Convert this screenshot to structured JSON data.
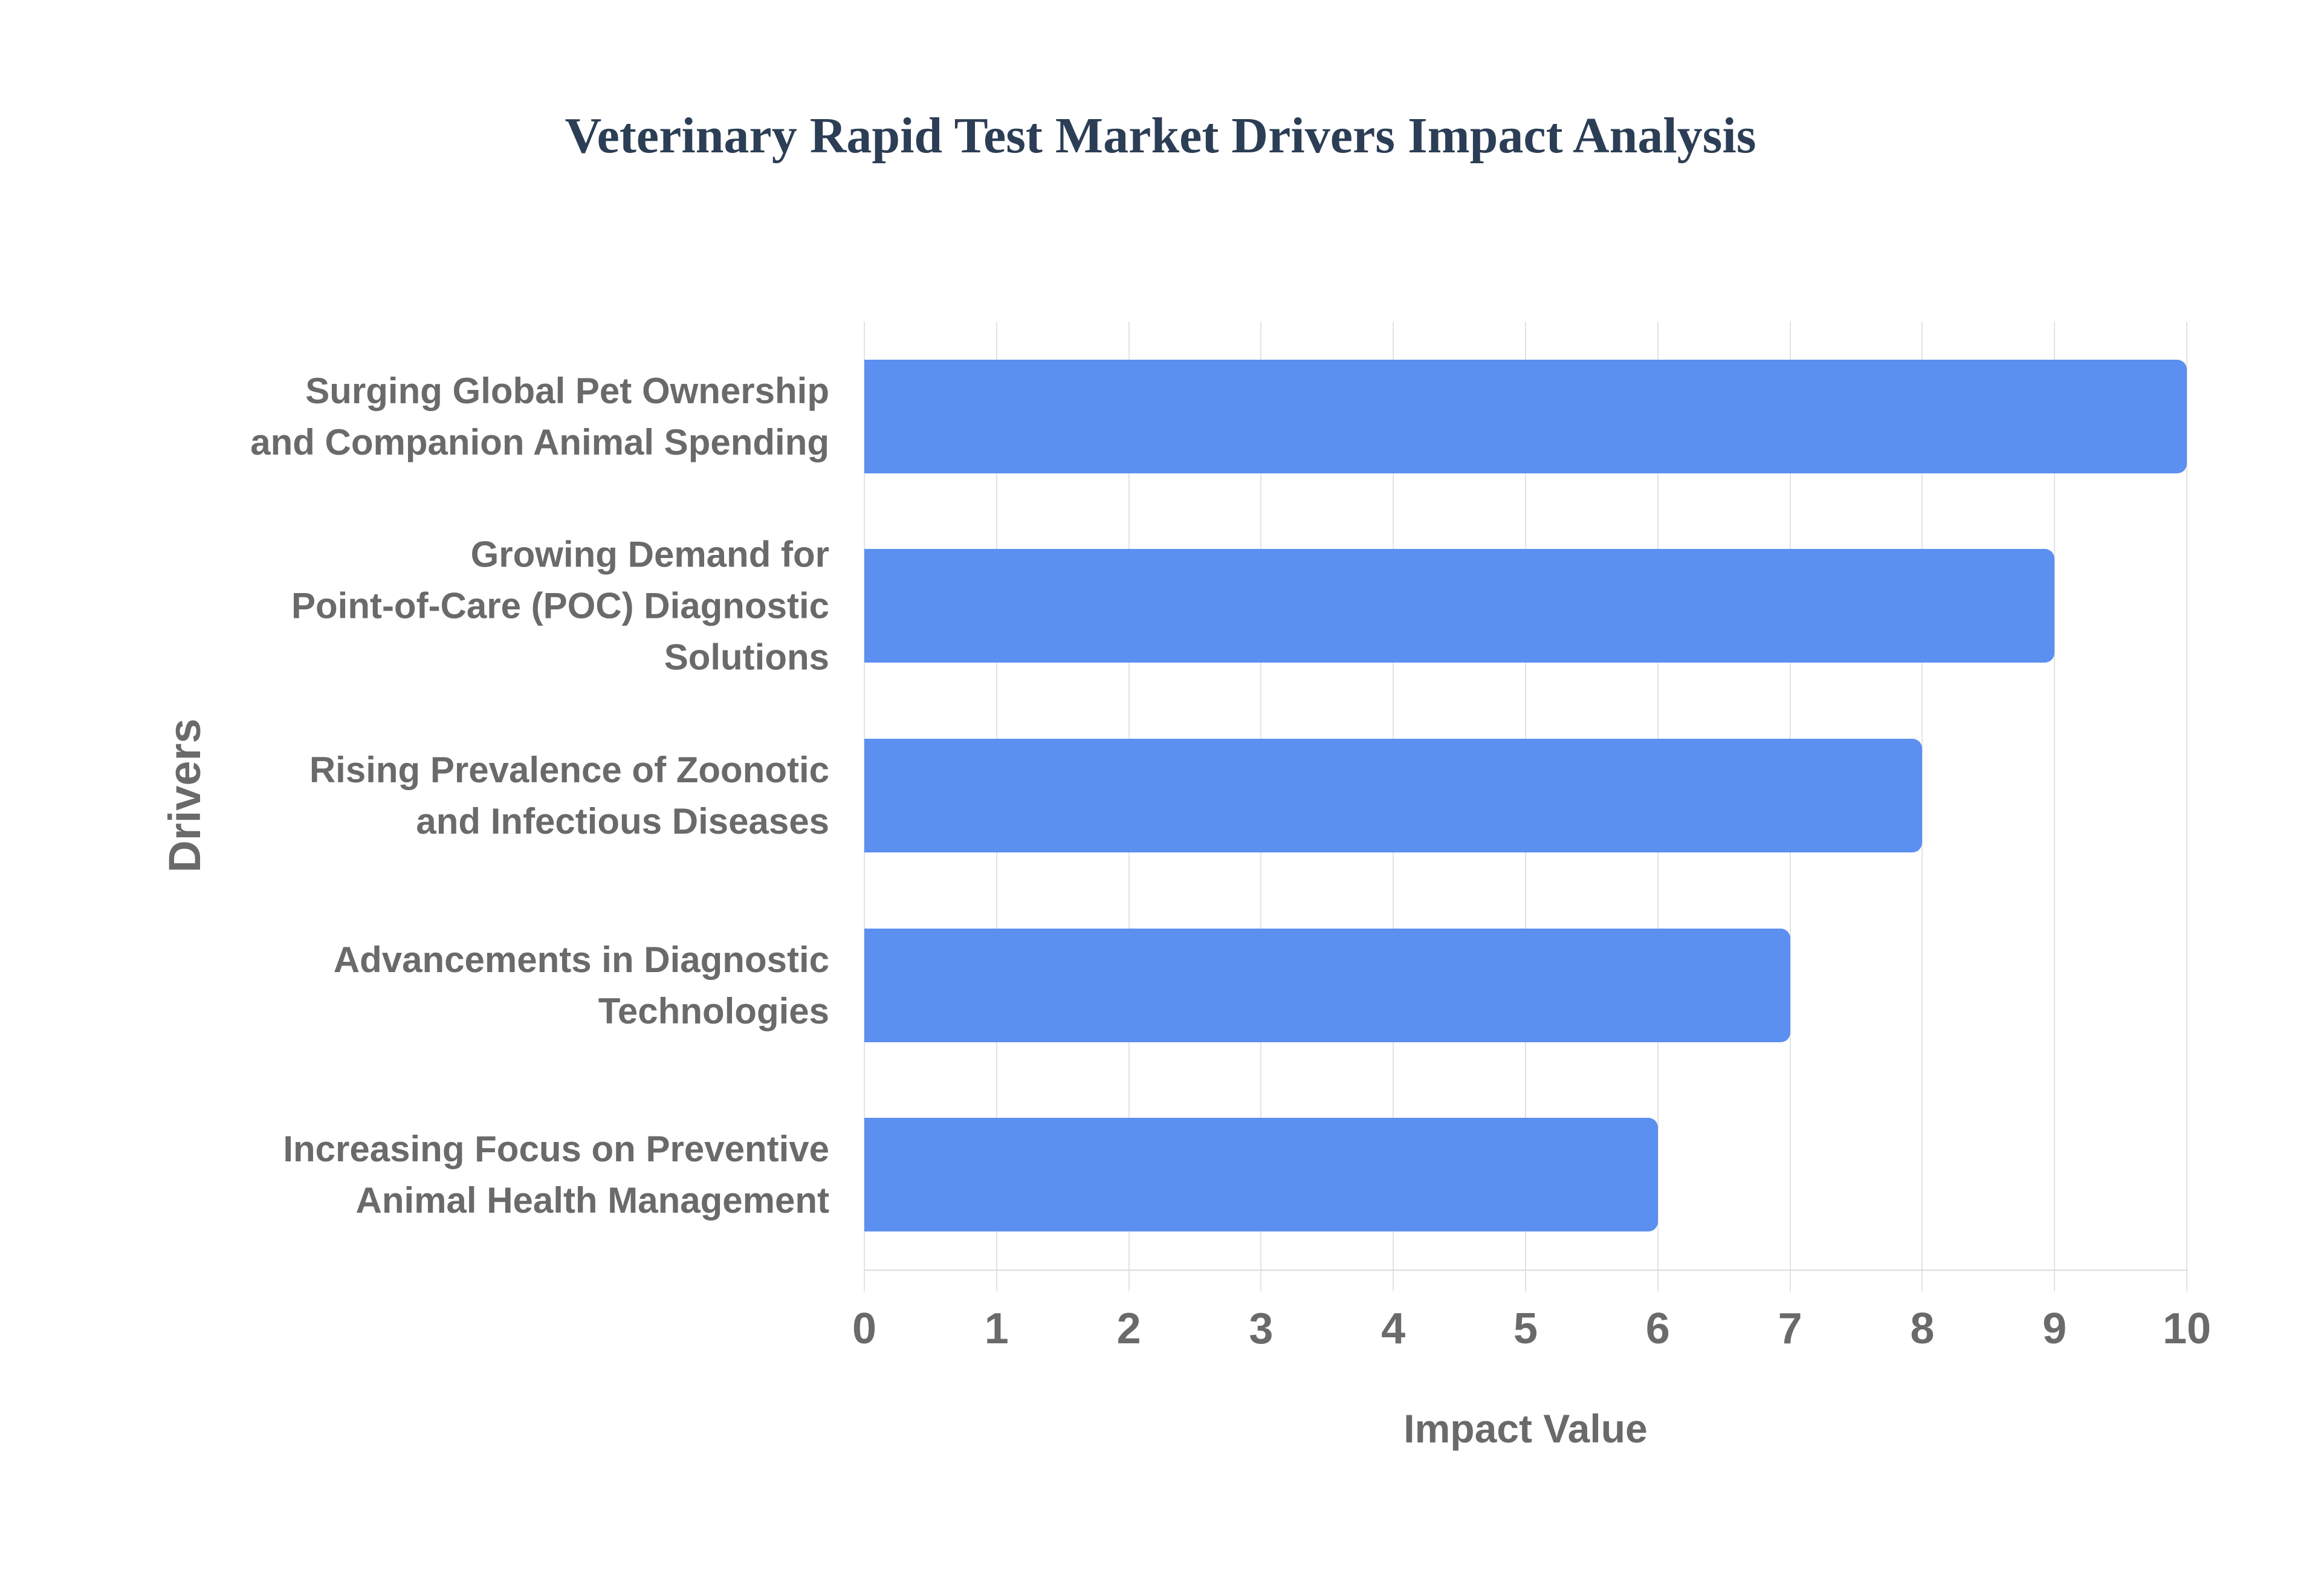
{
  "title": "Veterinary Rapid Test Market Drivers Impact Analysis",
  "chart_data": {
    "type": "bar",
    "orientation": "horizontal",
    "title": "Veterinary Rapid Test Market Drivers Impact Analysis",
    "xlabel": "Impact Value",
    "ylabel": "Drivers",
    "categories": [
      "Surging Global Pet Ownership and Companion Animal Spending",
      "Growing Demand for Point-of-Care (POC) Diagnostic Solutions",
      "Rising Prevalence of Zoonotic and Infectious Diseases",
      "Advancements in Diagnostic Technologies",
      "Increasing Focus on Preventive Animal Health Management"
    ],
    "categories_wrapped": [
      [
        "Surging Global Pet Ownership",
        "and Companion Animal Spending"
      ],
      [
        "Growing Demand for",
        "Point-of-Care (POC) Diagnostic",
        "Solutions"
      ],
      [
        "Rising Prevalence of Zoonotic",
        "and Infectious Diseases"
      ],
      [
        "Advancements in Diagnostic",
        "Technologies"
      ],
      [
        "Increasing Focus on Preventive",
        "Animal Health Management"
      ]
    ],
    "values": [
      10,
      9,
      8,
      7,
      6
    ],
    "xlim": [
      0,
      10
    ],
    "xticks": [
      0,
      1,
      2,
      3,
      4,
      5,
      6,
      7,
      8,
      9,
      10
    ],
    "grid": true,
    "legend": false
  },
  "colors": {
    "bar": "#5b8ff0",
    "grid": "#e3e3e3",
    "axis_line": "#dcdcdc",
    "axis_text": "#6a6a6a",
    "title_text": "#2c3e55",
    "background": "#ffffff"
  }
}
